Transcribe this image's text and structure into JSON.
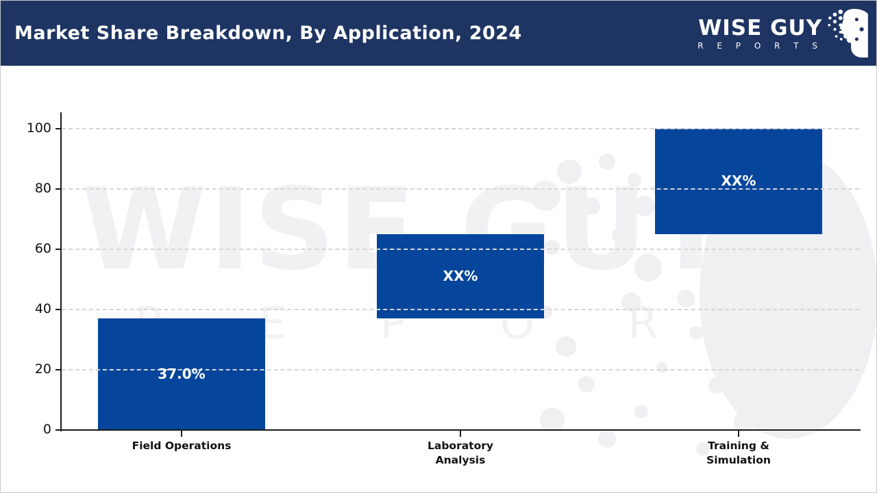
{
  "header": {
    "title": "Market Share Breakdown, By Application, 2024",
    "logo": {
      "name": "WISE GUY",
      "sub": "R E P O R T S"
    }
  },
  "watermark": {
    "name": "WISE GUY",
    "sub": "R E P O R T S"
  },
  "chart_data": {
    "type": "bar",
    "variant": "floating-waterfall",
    "title": "Market Share Breakdown, By Application, 2024",
    "categories": [
      "Field Operations",
      "Laboratory Analysis",
      "Training & Simulation"
    ],
    "category_lines": [
      [
        "Field Operations"
      ],
      [
        "Laboratory",
        "Analysis"
      ],
      [
        "Training &",
        "Simulation"
      ]
    ],
    "bars": [
      {
        "category": "Field Operations",
        "start": 0,
        "end": 37,
        "label": "37.0%"
      },
      {
        "category": "Laboratory Analysis",
        "start": 37,
        "end": 65,
        "label": "XX%"
      },
      {
        "category": "Training & Simulation",
        "start": 65,
        "end": 100,
        "label": "XX%"
      }
    ],
    "ylim": [
      0,
      100
    ],
    "yticks": [
      0,
      20,
      40,
      60,
      80,
      100
    ],
    "grid": {
      "horizontal": true,
      "style": "dashed",
      "above_bars": true
    },
    "legend": "none",
    "colors": {
      "bar": "#05469c",
      "bar_label": "#ffffff",
      "axis": "#1a1a1a",
      "tick_label": "#111111",
      "gridline": "#d6d6d6",
      "header_bg": "#1e3563",
      "header_text": "#ffffff",
      "watermark": "#f1f1f4"
    }
  }
}
